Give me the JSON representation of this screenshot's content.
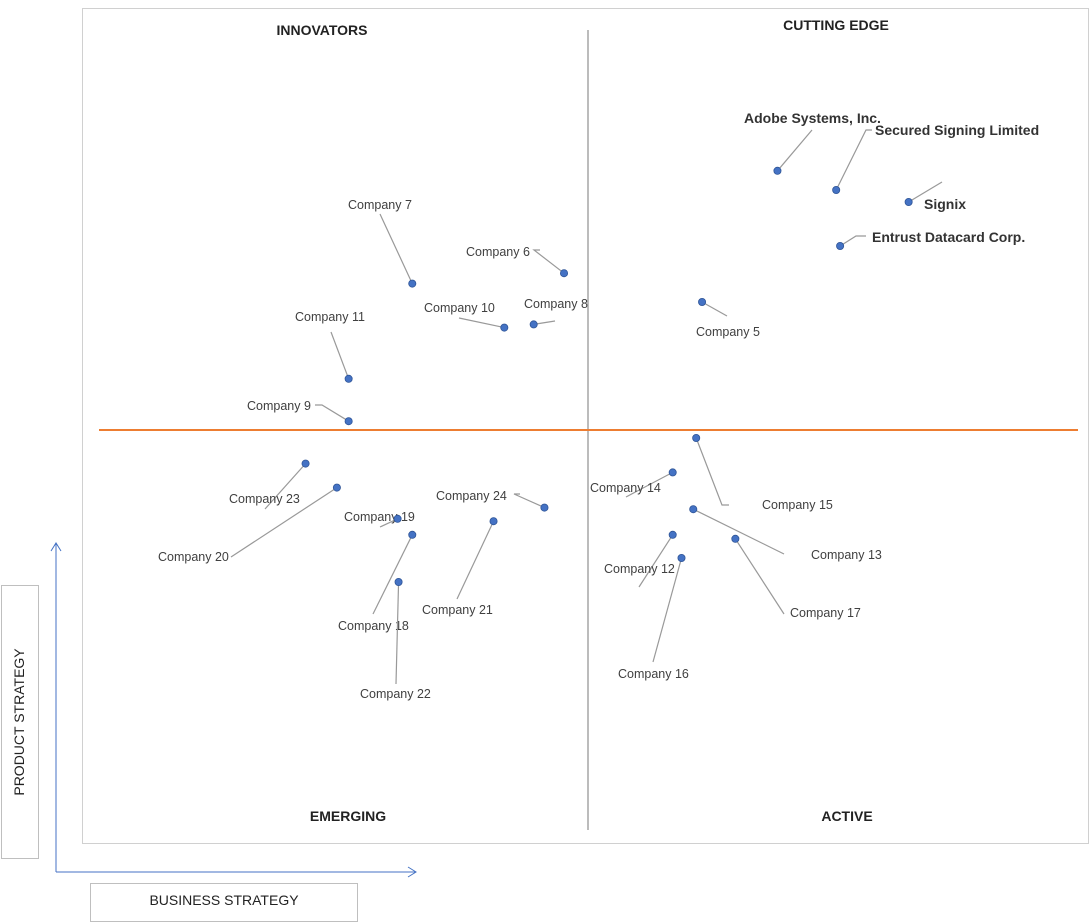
{
  "chart_data": {
    "type": "scatter",
    "quadrants": {
      "top_left": "INNOVATORS",
      "top_right": "CUTTING EDGE",
      "bottom_left": "EMERGING",
      "bottom_right": "ACTIVE"
    },
    "xlabel": "BUSINESS STRATEGY",
    "ylabel": "PRODUCT STRATEGY",
    "xlim": [
      0,
      100
    ],
    "ylim": [
      0,
      100
    ],
    "divider_x": 50,
    "divider_y": 50,
    "colors": {
      "point": "#4472C4",
      "horizontal_divider": "#ED7D31",
      "vertical_divider": "#A6A6A6",
      "axis_arrows": "#4472C4"
    },
    "points": [
      {
        "name": "Adobe Systems, Inc.",
        "x": 69.3,
        "y": 82.4,
        "emphasis": true
      },
      {
        "name": "Secured Signing Limited",
        "x": 75.3,
        "y": 80.0,
        "emphasis": true
      },
      {
        "name": "Signix",
        "x": 82.7,
        "y": 78.5,
        "emphasis": true
      },
      {
        "name": "Entrust Datacard Corp.",
        "x": 75.7,
        "y": 73.0,
        "emphasis": true
      },
      {
        "name": "Company 5",
        "x": 61.6,
        "y": 66.0
      },
      {
        "name": "Company 6",
        "x": 47.5,
        "y": 69.6
      },
      {
        "name": "Company 7",
        "x": 32.0,
        "y": 68.3
      },
      {
        "name": "Company 8",
        "x": 44.4,
        "y": 63.2
      },
      {
        "name": "Company 9",
        "x": 25.5,
        "y": 51.1
      },
      {
        "name": "Company 10",
        "x": 41.4,
        "y": 62.8
      },
      {
        "name": "Company 11",
        "x": 25.5,
        "y": 56.4
      },
      {
        "name": "Company 12",
        "x": 58.6,
        "y": 36.9
      },
      {
        "name": "Company 13",
        "x": 60.7,
        "y": 40.1
      },
      {
        "name": "Company 14",
        "x": 58.6,
        "y": 44.7
      },
      {
        "name": "Company 15",
        "x": 61.0,
        "y": 49.0
      },
      {
        "name": "Company 16",
        "x": 59.5,
        "y": 34.0
      },
      {
        "name": "Company 17",
        "x": 65.0,
        "y": 36.4
      },
      {
        "name": "Company 18",
        "x": 32.0,
        "y": 36.9
      },
      {
        "name": "Company 19",
        "x": 30.5,
        "y": 38.9
      },
      {
        "name": "Company 20",
        "x": 24.3,
        "y": 42.8
      },
      {
        "name": "Company 21",
        "x": 40.3,
        "y": 38.6
      },
      {
        "name": "Company 22",
        "x": 30.6,
        "y": 31.0
      },
      {
        "name": "Company 23",
        "x": 21.1,
        "y": 45.8
      },
      {
        "name": "Company 24",
        "x": 45.5,
        "y": 40.3
      }
    ]
  }
}
